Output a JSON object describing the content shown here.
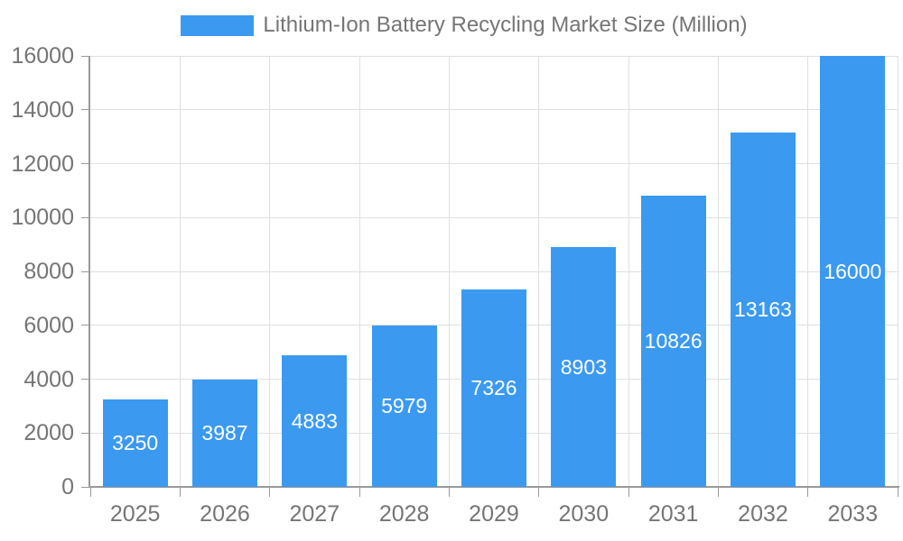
{
  "legend": {
    "label": "Lithium-Ion Battery Recycling Market Size (Million)"
  },
  "chart_data": {
    "type": "bar",
    "title": "Lithium-Ion Battery Recycling Market Size (Million)",
    "categories": [
      "2025",
      "2026",
      "2027",
      "2028",
      "2029",
      "2030",
      "2031",
      "2032",
      "2033"
    ],
    "values": [
      3250,
      3987,
      4883,
      5979,
      7326,
      8903,
      10826,
      13163,
      16000
    ],
    "xlabel": "",
    "ylabel": "",
    "ylim": [
      0,
      16000
    ],
    "yticks": [
      0,
      2000,
      4000,
      6000,
      8000,
      10000,
      12000,
      14000,
      16000
    ],
    "grid": true,
    "legend_position": "top",
    "colors": {
      "bar": "#3b9af0",
      "bar_label": "#ffffff",
      "axis_text": "#757575",
      "grid_line": "#e0e0e0",
      "axis_line": "#999999",
      "background": "#ffffff"
    }
  }
}
